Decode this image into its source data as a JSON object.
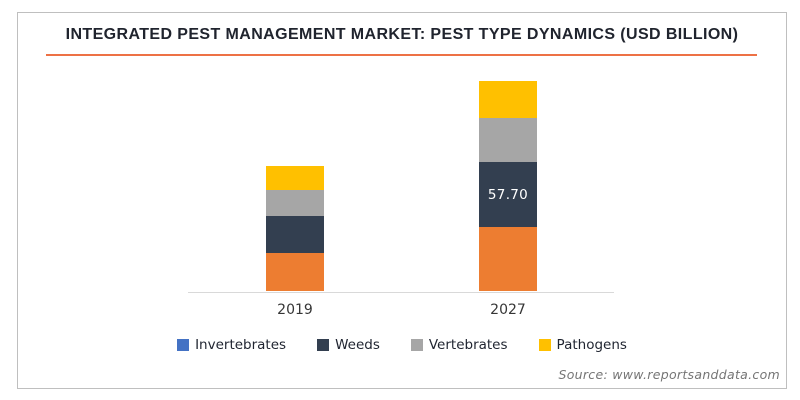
{
  "card": {
    "source_label": "Source: www.reportsanddata.com"
  },
  "colors": {
    "title_text": "#20242e",
    "title_underline": "#ed7145",
    "card_border": "#bfbfbf",
    "axis_line": "#d9d9d9",
    "data_label_text": "#ffffff",
    "tick_label_text": "#363636",
    "source_text": "#757575"
  },
  "chart_data": {
    "type": "bar",
    "stacked": true,
    "title": "INTEGRATED PEST MANAGEMENT MARKET: PEST TYPE DYNAMICS (USD BILLION)",
    "ylabel": "USD Billion",
    "categories": [
      "2019",
      "2027"
    ],
    "series": [
      {
        "name": "Invertebrates",
        "legend_color": "#4472c4",
        "bar_color": "#ed7d31",
        "values": [
          33.7,
          56.8
        ]
      },
      {
        "name": "Weeds",
        "legend_color": "#333f50",
        "bar_color": "#333f50",
        "values": [
          33.3,
          57.7
        ]
      },
      {
        "name": "Vertebrates",
        "legend_color": "#a6a6a6",
        "bar_color": "#a6a6a6",
        "values": [
          23.1,
          39.1
        ]
      },
      {
        "name": "Pathogens",
        "legend_color": "#ffc000",
        "bar_color": "#ffc000",
        "values": [
          21.3,
          32.8
        ]
      }
    ],
    "data_labels": [
      {
        "category_index": 1,
        "series_name": "Weeds",
        "text": "57.70"
      }
    ],
    "legend_position": "bottom",
    "grid": false,
    "axis_visible": "x-only"
  }
}
